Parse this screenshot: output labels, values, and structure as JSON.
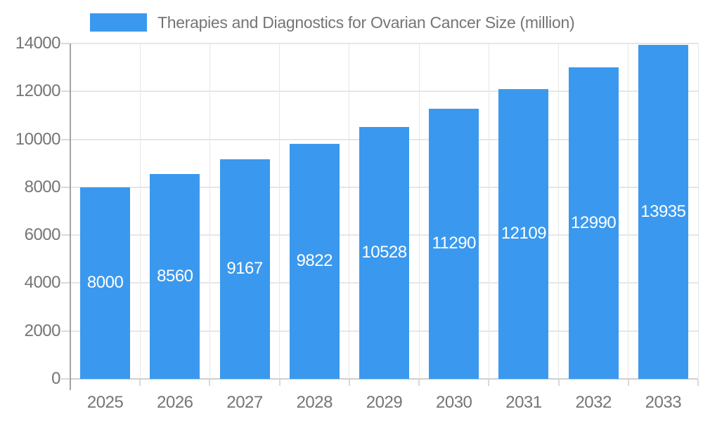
{
  "chart_data": {
    "type": "bar",
    "title": "Therapies and Diagnostics for Ovarian Cancer Size (million)",
    "legend_position": "top",
    "categories": [
      "2025",
      "2026",
      "2027",
      "2028",
      "2029",
      "2030",
      "2031",
      "2032",
      "2033"
    ],
    "values": [
      8000,
      8560,
      9167,
      9822,
      10528,
      11290,
      12109,
      12990,
      13935
    ],
    "xlabel": "",
    "ylabel": "",
    "ylim": [
      0,
      14000
    ],
    "yticks": [
      0,
      2000,
      4000,
      6000,
      8000,
      10000,
      12000,
      14000
    ],
    "grid": true,
    "bar_value_labels_visible": true,
    "colors": {
      "bar": "#3A99EE",
      "bar_label": "#FFFFFF",
      "axis_text": "#757575",
      "legend_text": "#757575",
      "gridline": "#E6E6E6",
      "baseline": "#CFCFCF",
      "axis_line": "#A3A3A3",
      "tick": "#D9D9D9",
      "background": "#FFFFFF"
    }
  }
}
